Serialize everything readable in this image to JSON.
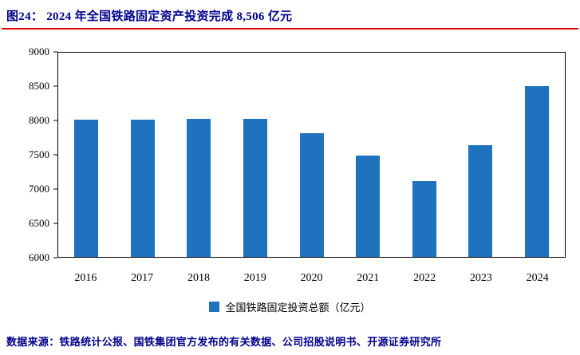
{
  "header": {
    "title": "图24：  2024 年全国铁路固定资产投资完成 8,506 亿元"
  },
  "legend": {
    "label": "全国铁路固定投资总额（亿元）"
  },
  "footer": {
    "source": "数据来源：铁路统计公报、国铁集团官方发布的有关数据、公司招股说明书、开源证券研究所"
  },
  "colors": {
    "bar": "#1f72bd",
    "title": "#00008b",
    "rule": "#e60000",
    "footer": "#00008b",
    "axis_text": "#000000",
    "plot_border": "#000000"
  },
  "chart_data": {
    "type": "bar",
    "title": "2024 年全国铁路固定资产投资完成 8,506 亿元",
    "categories": [
      "2016",
      "2017",
      "2018",
      "2019",
      "2020",
      "2021",
      "2022",
      "2023",
      "2024"
    ],
    "values": [
      8015,
      8010,
      8028,
      8029,
      7819,
      7489,
      7109,
      7645,
      8506
    ],
    "series_name": "全国铁路固定投资总额（亿元）",
    "xlabel": "",
    "ylabel": "",
    "ylim": [
      6000,
      9000
    ],
    "yticks": [
      6000,
      6500,
      7000,
      7500,
      8000,
      8500,
      9000
    ],
    "grid": false,
    "legend_position": "bottom",
    "unit": "亿元"
  }
}
